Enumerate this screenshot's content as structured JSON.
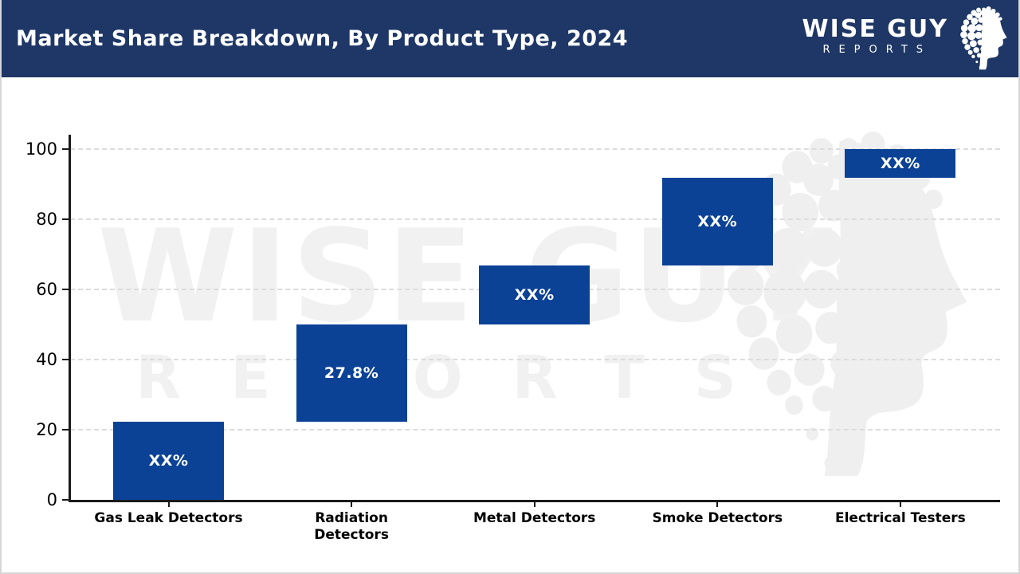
{
  "header": {
    "title": "Market Share Breakdown, By Product Type, 2024",
    "logo": {
      "line1": "WISE GUY",
      "line2": "REPORTS"
    }
  },
  "watermark": {
    "line1": "WISE GUY",
    "line2": "REPORTS"
  },
  "colors": {
    "header_bg": "#1f3766",
    "bar": "#0b4296",
    "bar_label": "#ffffff",
    "grid_line": "#dcdcdc",
    "axis": "#1a1a1a",
    "watermark": "#f1f1f1",
    "page_bg": "#ffffff"
  },
  "chart_data": {
    "type": "bar",
    "subtype": "waterfall",
    "title": "Market Share Breakdown, By Product Type, 2024",
    "categories": [
      "Gas Leak Detectors",
      "Radiation\nDetectors",
      "Metal Detectors",
      "Smoke Detectors",
      "Electrical Testers"
    ],
    "segments": [
      {
        "category": "Gas Leak Detectors",
        "start": 0,
        "end": 22.2,
        "label": "XX%"
      },
      {
        "category": "Radiation Detectors",
        "start": 22.2,
        "end": 50.0,
        "label": "27.8%"
      },
      {
        "category": "Metal Detectors",
        "start": 50.0,
        "end": 66.8,
        "label": "XX%"
      },
      {
        "category": "Smoke Detectors",
        "start": 66.8,
        "end": 91.8,
        "label": "XX%"
      },
      {
        "category": "Electrical Testers",
        "start": 91.8,
        "end": 100.0,
        "label": "XX%"
      }
    ],
    "xlabel": "",
    "ylabel": "",
    "yticks": [
      0,
      20,
      40,
      60,
      80,
      100
    ],
    "ylim": [
      0,
      104
    ],
    "grid": "horizontal-dashed",
    "legend": "none"
  }
}
